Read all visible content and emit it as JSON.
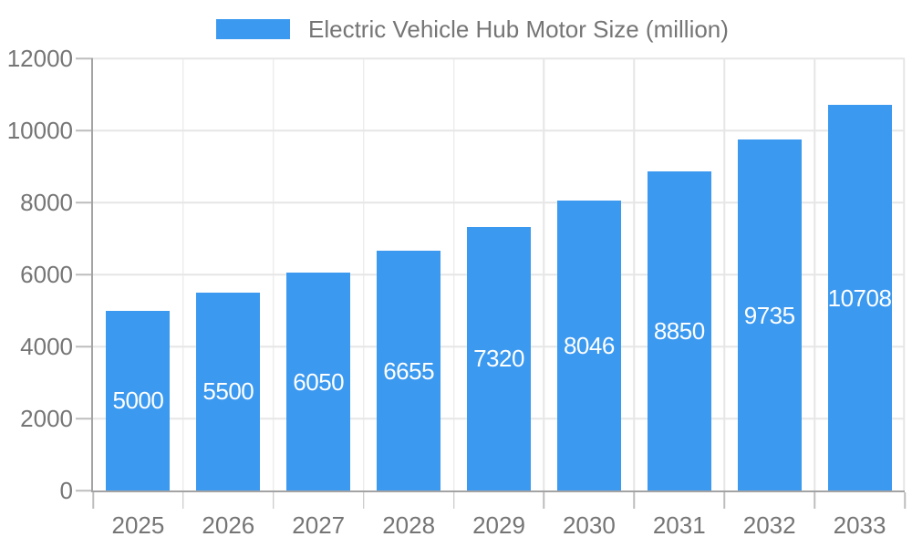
{
  "legend": {
    "label": "Electric Vehicle Hub Motor Size (million)",
    "position": "top"
  },
  "chart_data": {
    "type": "bar",
    "title": "Electric Vehicle Hub Motor Size (million)",
    "categories": [
      "2025",
      "2026",
      "2027",
      "2028",
      "2029",
      "2030",
      "2031",
      "2032",
      "2033"
    ],
    "series": [
      {
        "name": "Electric Vehicle Hub Motor Size (million)",
        "values": [
          5000,
          5500,
          6050,
          6655,
          7320,
          8046,
          8850,
          9735,
          10708
        ]
      }
    ],
    "xlabel": "",
    "ylabel": "",
    "ylim": [
      0,
      12000
    ],
    "ytick_step": 2000,
    "ytick_labels": [
      "0",
      "2000",
      "4000",
      "6000",
      "8000",
      "10000",
      "12000"
    ],
    "grid": true,
    "legend_position": "top",
    "value_labels_inside_bars": true,
    "colors": {
      "bar": "#3B99F0",
      "bar_label": "#FFFFFF",
      "axis_text": "#757575",
      "grid_line": "#E6E6E6",
      "axis_line": "#A3A3A3",
      "tick": "#BDBDBD",
      "background": "#FFFFFF"
    }
  }
}
